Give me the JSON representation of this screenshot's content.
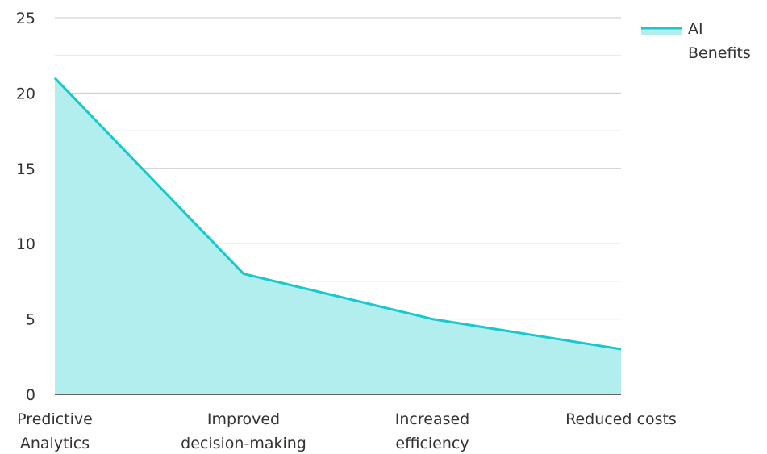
{
  "chart_data": {
    "type": "area",
    "categories": [
      [
        "Predictive",
        "Analytics"
      ],
      [
        "Improved",
        "decision-making"
      ],
      [
        "Increased",
        "efficiency"
      ],
      [
        "Reduced costs"
      ]
    ],
    "series": [
      {
        "name": "AI Benefits",
        "legend_lines": [
          "AI",
          "Benefits"
        ],
        "values": [
          21,
          8,
          5,
          3
        ],
        "line_color": "#17c8cc",
        "fill_color": "#b2eeee"
      }
    ],
    "ylim": [
      0,
      25
    ],
    "yticks": [
      "0",
      "5",
      "10",
      "15",
      "20",
      "25"
    ],
    "grid": true,
    "legend_position": "top-right"
  }
}
